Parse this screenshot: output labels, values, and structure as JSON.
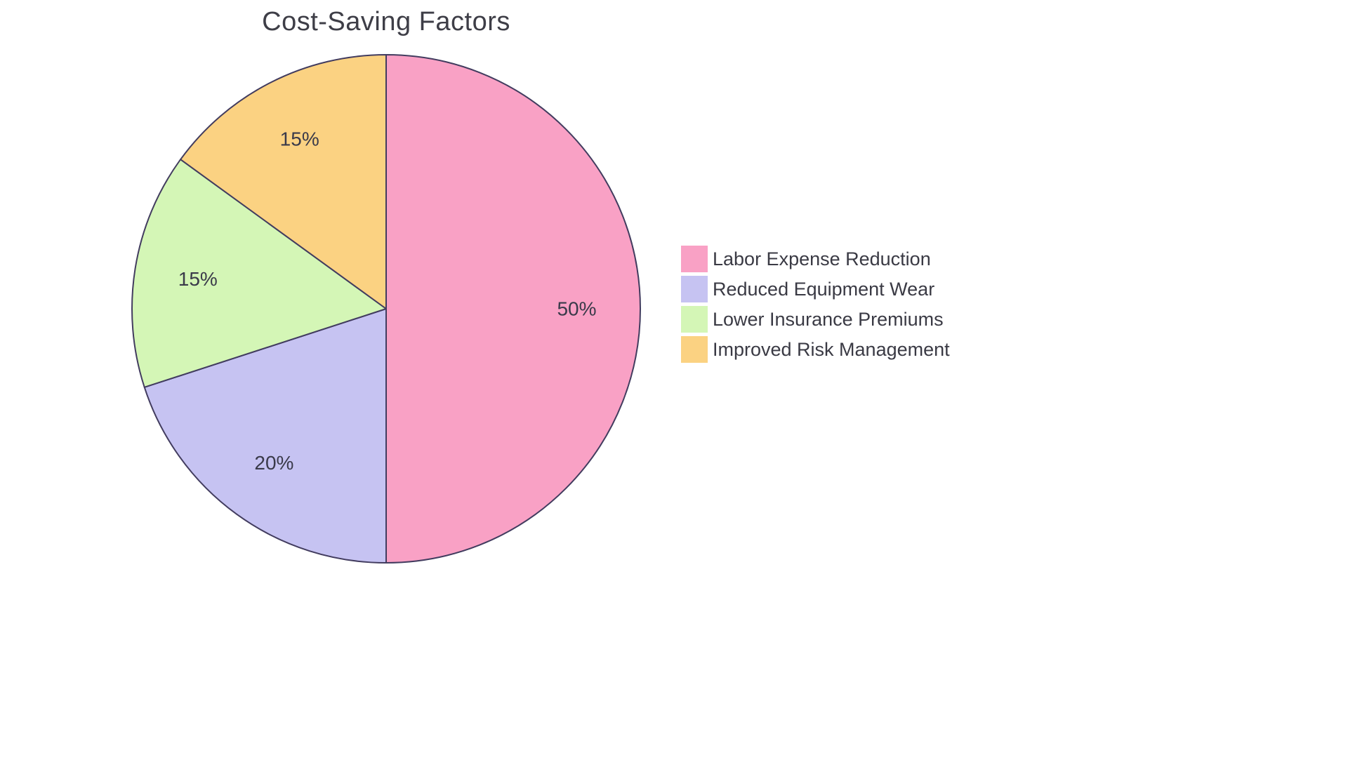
{
  "chart_data": {
    "type": "pie",
    "title": "Cost-Saving Factors",
    "slices": [
      {
        "label": "Labor Expense Reduction",
        "value": 50,
        "display": "50%",
        "color": "#F9A1C5"
      },
      {
        "label": "Reduced Equipment Wear",
        "value": 20,
        "display": "20%",
        "color": "#C6C3F2"
      },
      {
        "label": "Lower Insurance Premiums",
        "value": 15,
        "display": "15%",
        "color": "#D4F6B6"
      },
      {
        "label": "Improved Risk Management",
        "value": 15,
        "display": "15%",
        "color": "#FBD282"
      }
    ],
    "start_angle_deg": 0,
    "direction": "clockwise",
    "stroke_color": "#423C5F",
    "label_color": "#3A3A4A",
    "title_color": "#3E3E47",
    "legend_position": "right",
    "grid": false
  }
}
